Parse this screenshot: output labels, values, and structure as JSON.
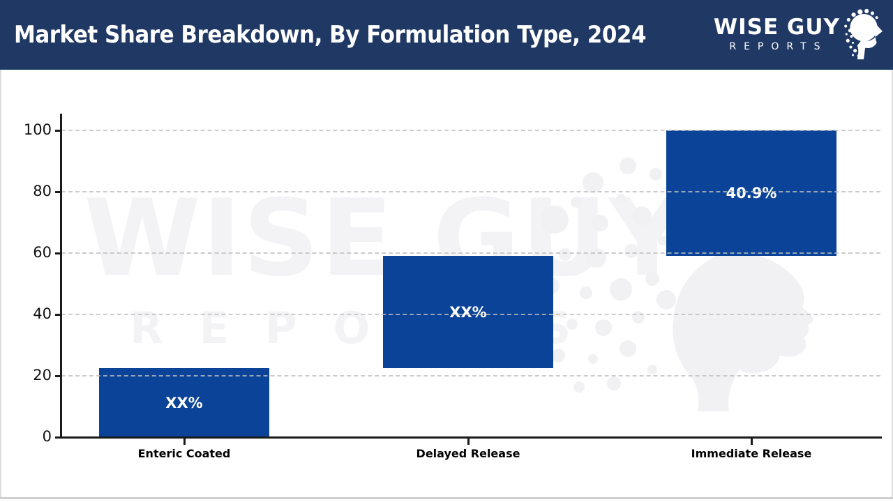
{
  "header": {
    "title": "Market Share Breakdown, By Formulation Type, 2024",
    "bg_color": "#1f3864",
    "logo": {
      "line1": "WISE GUY",
      "line2": "REPORTS"
    }
  },
  "watermark": {
    "line1": "WISE GUY",
    "line2": "REPORTS"
  },
  "chart_data": {
    "type": "bar",
    "subtype": "waterfall",
    "title": "Market Share Breakdown, By Formulation Type, 2024",
    "categories": [
      "Enteric Coated",
      "Delayed Release",
      "Immediate Release"
    ],
    "series": [
      {
        "name": "Market Share",
        "segments": [
          {
            "category": "Enteric Coated",
            "start": 0,
            "end": 22.4,
            "label": "XX%"
          },
          {
            "category": "Delayed Release",
            "start": 22.4,
            "end": 59.1,
            "label": "XX%"
          },
          {
            "category": "Immediate Release",
            "start": 59.1,
            "end": 100,
            "label": "40.9%"
          }
        ]
      }
    ],
    "ylim": [
      0,
      100
    ],
    "yticks": [
      0,
      20,
      40,
      60,
      80,
      100
    ],
    "xlabel": "",
    "ylabel": "",
    "grid": "horizontal-dashed-over-bars",
    "legend": "none",
    "bar_color": "#0a4397",
    "bar_label_color": "#ffffff"
  }
}
